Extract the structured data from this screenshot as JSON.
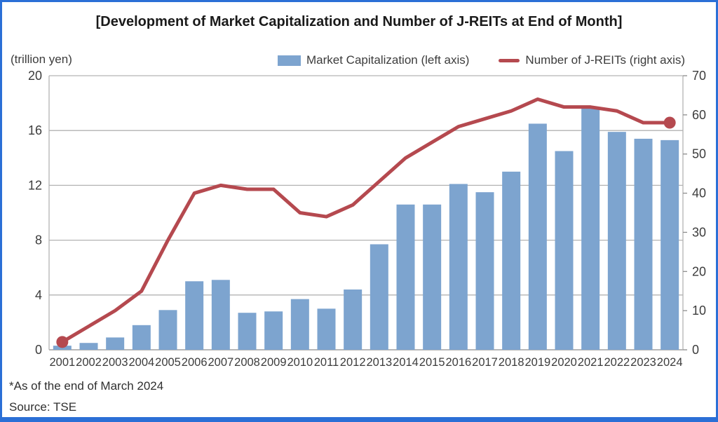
{
  "title": "[Development of Market Capitalization and Number of J-REITs at End of Month]",
  "unit_label": "(trillion yen)",
  "footnote": "*As of the end of March 2024",
  "source": "Source: TSE",
  "colors": {
    "bar": "#7da4cf",
    "line": "#b5494f",
    "grid": "#b3b3b3",
    "axis_zero": "#8c8c8c",
    "tick_text": "#3c3c3c",
    "frame_border": "#2b6fd6"
  },
  "chart_data": {
    "type": "bar",
    "categories": [
      "2001",
      "2002",
      "2003",
      "2004",
      "2005",
      "2006",
      "2007",
      "2008",
      "2009",
      "2010",
      "2011",
      "2012",
      "2013",
      "2014",
      "2015",
      "2016",
      "2017",
      "2018",
      "2019",
      "2020",
      "2021",
      "2022",
      "2023",
      "2024"
    ],
    "series": [
      {
        "name": "Market Capitalization (left axis)",
        "type": "bar",
        "axis": "left",
        "values": [
          0.3,
          0.5,
          0.9,
          1.8,
          2.9,
          5.0,
          5.1,
          2.7,
          2.8,
          3.7,
          3.0,
          4.4,
          7.7,
          10.6,
          10.6,
          12.1,
          11.5,
          13.0,
          16.5,
          14.5,
          17.6,
          15.9,
          15.4,
          15.3
        ]
      },
      {
        "name": "Number of J-REITs (right axis)",
        "type": "line",
        "axis": "right",
        "values": [
          2,
          6,
          10,
          15,
          28,
          40,
          42,
          41,
          41,
          35,
          34,
          37,
          43,
          49,
          53,
          57,
          59,
          61,
          64,
          62,
          62,
          61,
          58,
          58
        ]
      }
    ],
    "left_axis": {
      "label": "(trillion yen)",
      "range": [
        0,
        20
      ],
      "ticks": [
        0,
        4,
        8,
        12,
        16,
        20
      ]
    },
    "right_axis": {
      "range": [
        0,
        70
      ],
      "ticks": [
        0,
        10,
        20,
        30,
        40,
        50,
        60,
        70
      ]
    },
    "grid": true,
    "legend_position": "top",
    "line_markers": "first and last points only"
  }
}
